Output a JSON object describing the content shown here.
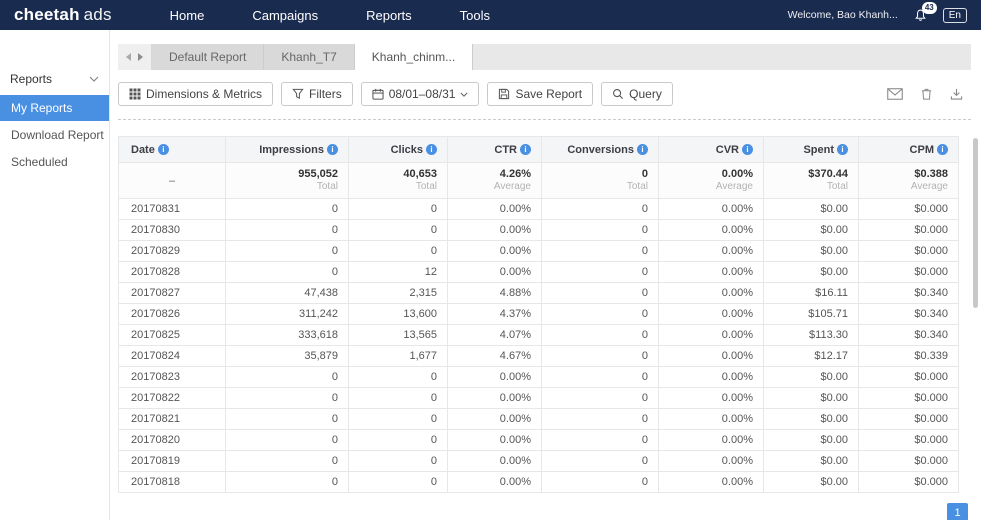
{
  "colors": {
    "navbar": "#1a2b50",
    "accent": "#4a90e2"
  },
  "navbar": {
    "logo_bold": "cheetah",
    "logo_light": "ads",
    "items": [
      "Home",
      "Campaigns",
      "Reports",
      "Tools"
    ],
    "welcome": "Welcome,",
    "user": "Bao Khanh...",
    "notification_count": "43",
    "language": "En"
  },
  "sidebar": {
    "section": "Reports",
    "items": [
      {
        "label": "My Reports",
        "active": true
      },
      {
        "label": "Download Report",
        "active": false
      },
      {
        "label": "Scheduled",
        "active": false
      }
    ]
  },
  "tabs": [
    {
      "label": "Default Report",
      "active": false
    },
    {
      "label": "Khanh_T7",
      "active": false
    },
    {
      "label": "Khanh_chinm...",
      "active": true
    }
  ],
  "toolbar": {
    "dimensions_metrics": "Dimensions & Metrics",
    "filters": "Filters",
    "date_range": "08/01–08/31",
    "save_report": "Save Report",
    "query": "Query"
  },
  "table": {
    "columns": [
      "Date",
      "Impressions",
      "Clicks",
      "CTR",
      "Conversions",
      "CVR",
      "Spent",
      "CPM"
    ],
    "summary": {
      "date": "–",
      "values": [
        "955,052",
        "40,653",
        "4.26%",
        "0",
        "0.00%",
        "$370.44",
        "$0.388"
      ],
      "sublabels": [
        "Total",
        "Total",
        "Average",
        "Total",
        "Average",
        "Total",
        "Average"
      ]
    },
    "rows": [
      [
        "20170831",
        "0",
        "0",
        "0.00%",
        "0",
        "0.00%",
        "$0.00",
        "$0.000"
      ],
      [
        "20170830",
        "0",
        "0",
        "0.00%",
        "0",
        "0.00%",
        "$0.00",
        "$0.000"
      ],
      [
        "20170829",
        "0",
        "0",
        "0.00%",
        "0",
        "0.00%",
        "$0.00",
        "$0.000"
      ],
      [
        "20170828",
        "0",
        "12",
        "0.00%",
        "0",
        "0.00%",
        "$0.00",
        "$0.000"
      ],
      [
        "20170827",
        "47,438",
        "2,315",
        "4.88%",
        "0",
        "0.00%",
        "$16.11",
        "$0.340"
      ],
      [
        "20170826",
        "311,242",
        "13,600",
        "4.37%",
        "0",
        "0.00%",
        "$105.71",
        "$0.340"
      ],
      [
        "20170825",
        "333,618",
        "13,565",
        "4.07%",
        "0",
        "0.00%",
        "$113.30",
        "$0.340"
      ],
      [
        "20170824",
        "35,879",
        "1,677",
        "4.67%",
        "0",
        "0.00%",
        "$12.17",
        "$0.339"
      ],
      [
        "20170823",
        "0",
        "0",
        "0.00%",
        "0",
        "0.00%",
        "$0.00",
        "$0.000"
      ],
      [
        "20170822",
        "0",
        "0",
        "0.00%",
        "0",
        "0.00%",
        "$0.00",
        "$0.000"
      ],
      [
        "20170821",
        "0",
        "0",
        "0.00%",
        "0",
        "0.00%",
        "$0.00",
        "$0.000"
      ],
      [
        "20170820",
        "0",
        "0",
        "0.00%",
        "0",
        "0.00%",
        "$0.00",
        "$0.000"
      ],
      [
        "20170819",
        "0",
        "0",
        "0.00%",
        "0",
        "0.00%",
        "$0.00",
        "$0.000"
      ],
      [
        "20170818",
        "0",
        "0",
        "0.00%",
        "0",
        "0.00%",
        "$0.00",
        "$0.000"
      ]
    ]
  },
  "pagination": {
    "page": "1"
  }
}
